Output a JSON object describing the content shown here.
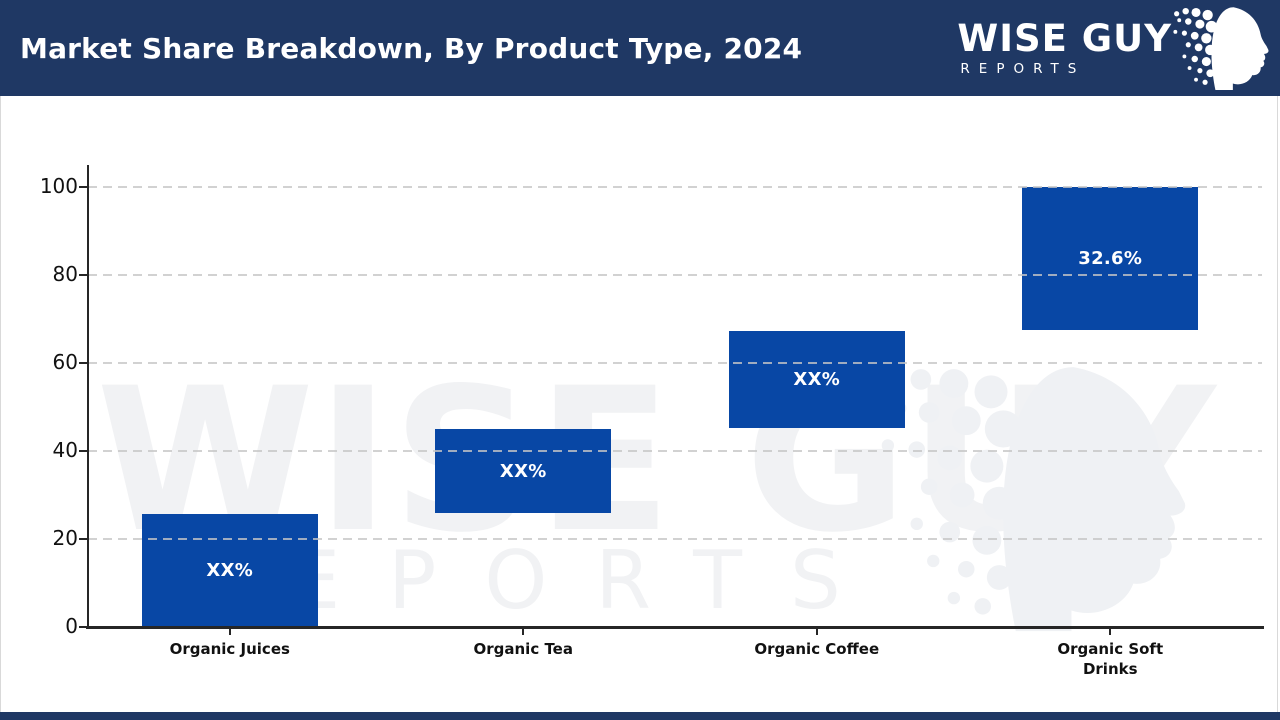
{
  "header": {
    "bg_color": "#1f3864",
    "title": "Market Share Breakdown, By Product Type, 2024",
    "logo": {
      "wordmark": "WISE GUY",
      "subtext": "REPORTS"
    }
  },
  "watermark": {
    "wordmark": "WISE GUY",
    "subtext": "REPORTS"
  },
  "chart_data": {
    "type": "bar",
    "subtype": "waterfall",
    "title": "Market Share Breakdown, By Product Type, 2024",
    "categories": [
      "Organic Juices",
      "Organic Tea",
      "Organic Coffee",
      "Organic Soft\nDrinks"
    ],
    "series": [
      {
        "category": "Organic Juices",
        "start": 0,
        "end": 25.7,
        "value_label": "XX%"
      },
      {
        "category": "Organic Tea",
        "start": 25.9,
        "end": 45.0,
        "value_label": "XX%"
      },
      {
        "category": "Organic Coffee",
        "start": 45.2,
        "end": 67.3,
        "value_label": "XX%"
      },
      {
        "category": "Organic Soft Drinks",
        "start": 67.4,
        "end": 100.0,
        "value_label": "32.6%"
      }
    ],
    "ylim": [
      0,
      100
    ],
    "yticks": [
      0,
      20,
      40,
      60,
      80,
      100
    ],
    "bar_color": "#0847a5",
    "bar_label_color": "#ffffff",
    "grid": {
      "axis": "y",
      "style": "dashed",
      "color": "#d9d9d9"
    },
    "legend": "none"
  },
  "footer": {
    "bg_color": "#1f3864"
  }
}
